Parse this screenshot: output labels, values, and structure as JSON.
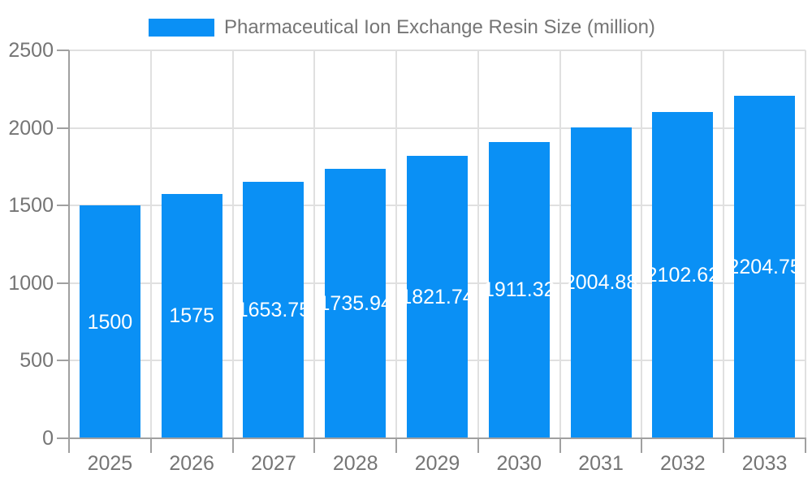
{
  "chart_data": {
    "type": "bar",
    "title": "Pharmaceutical Ion Exchange Resin Size (million)",
    "xlabel": "",
    "ylabel": "",
    "categories": [
      "2025",
      "2026",
      "2027",
      "2028",
      "2029",
      "2030",
      "2031",
      "2032",
      "2033"
    ],
    "values": [
      1500,
      1575,
      1653.75,
      1735.94,
      1821.74,
      1911.32,
      2004.88,
      2102.62,
      2204.75
    ],
    "value_labels": [
      "1500",
      "1575",
      "1653.75",
      "1735.94",
      "1821.74",
      "1911.32",
      "2004.88",
      "2102.62",
      "2204.75"
    ],
    "ylim": [
      0,
      2500
    ],
    "yticks": [
      0,
      500,
      1000,
      1500,
      2000,
      2500
    ],
    "grid": true,
    "legend": {
      "position": "top",
      "entries": [
        {
          "label": "Pharmaceutical Ion Exchange Resin Size (million)",
          "color": "#0A90F5"
        }
      ]
    }
  },
  "colors": {
    "bar": "#0A90F5",
    "axis_text": "#757575",
    "grid_line": "#E0E0E0",
    "axis_line": "#A0A0A0",
    "value_label": "#FFFFFF",
    "background": "#FFFFFF"
  }
}
